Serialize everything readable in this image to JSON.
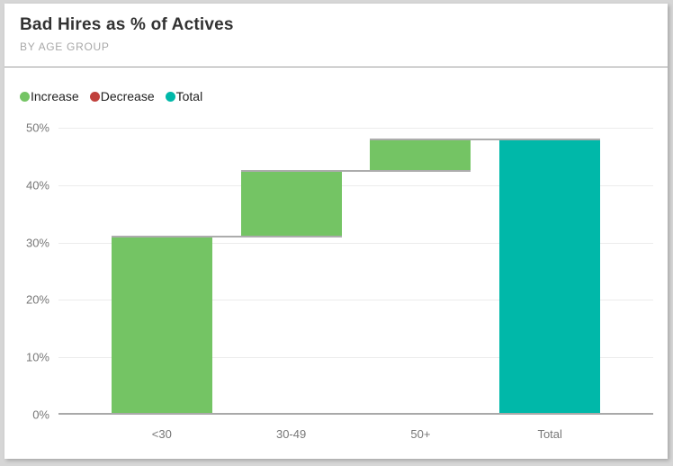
{
  "card": {
    "title": "Bad Hires as % of Actives",
    "subtitle": "BY AGE GROUP"
  },
  "legend": [
    {
      "label": "Increase",
      "color": "#74C464"
    },
    {
      "label": "Decrease",
      "color": "#C0403C"
    },
    {
      "label": "Total",
      "color": "#00B8A9"
    }
  ],
  "chart_data": {
    "type": "bar",
    "subtype": "waterfall",
    "title": "Bad Hires as % of Actives",
    "subtitle": "BY AGE GROUP",
    "categories": [
      "<30",
      "30-49",
      "50+",
      "Total"
    ],
    "steps": [
      {
        "category": "<30",
        "kind": "increase",
        "start": 0,
        "end": 31.0,
        "delta": 31.0
      },
      {
        "category": "30-49",
        "kind": "increase",
        "start": 31.0,
        "end": 42.4,
        "delta": 11.4
      },
      {
        "category": "50+",
        "kind": "increase",
        "start": 42.4,
        "end": 48.0,
        "delta": 5.6
      },
      {
        "category": "Total",
        "kind": "total",
        "start": 0,
        "end": 48.0,
        "delta": 48.0
      }
    ],
    "y_axis": {
      "min": 0,
      "max": 50,
      "unit": "%",
      "tick_labels": [
        "0%",
        "10%",
        "20%",
        "30%",
        "40%",
        "50%"
      ]
    },
    "colors": {
      "increase": "#74C464",
      "decrease": "#C0403C",
      "total": "#00B8A9"
    },
    "grid": true,
    "legend_position": "top-left"
  }
}
